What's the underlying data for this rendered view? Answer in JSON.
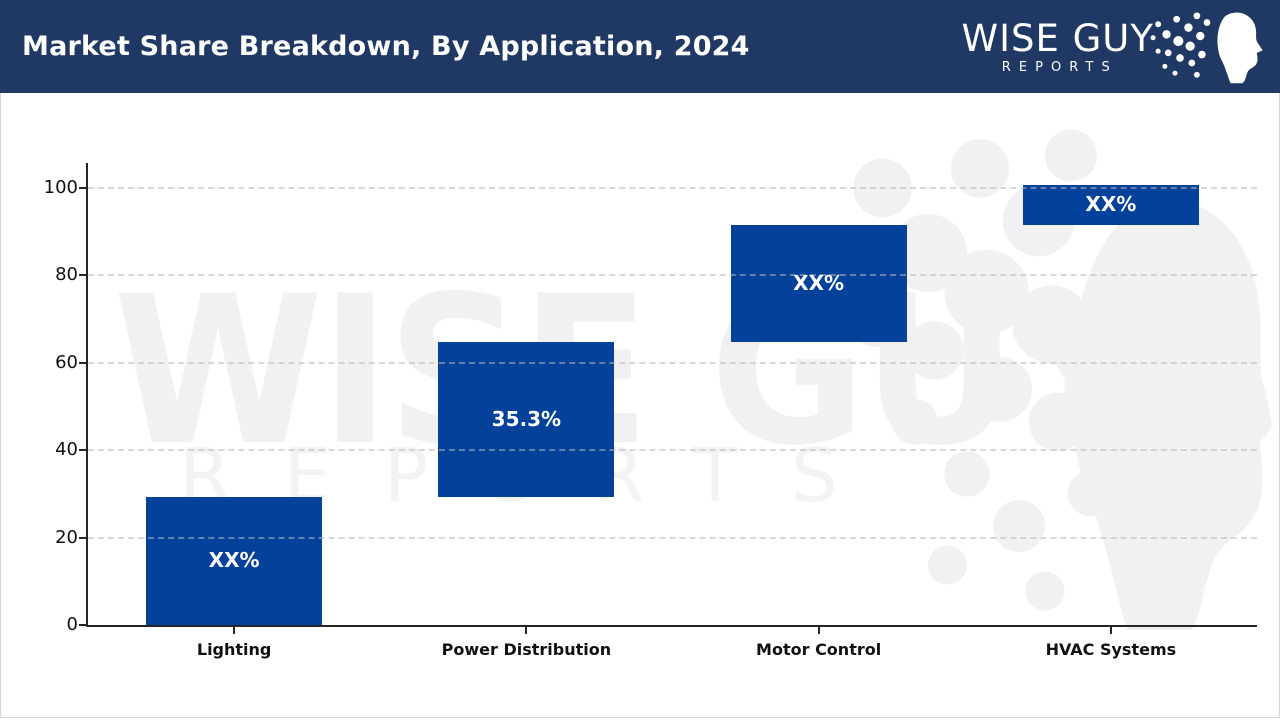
{
  "header": {
    "title": "Market Share Breakdown, By Application, 2024",
    "logo": {
      "line1": "WISE GUY",
      "line2": "REPORTS"
    }
  },
  "watermark": {
    "line1": "WISE GUY",
    "line2": "REPORTS"
  },
  "chart_data": {
    "type": "bar",
    "subtype": "floating-waterfall",
    "title": "Market Share Breakdown, By Application, 2024",
    "categories": [
      "Lighting",
      "Power Distribution",
      "Motor Control",
      "HVAC Systems"
    ],
    "segments": [
      {
        "category": "Lighting",
        "start": 0,
        "end": 29.3,
        "value_label": "XX%"
      },
      {
        "category": "Power Distribution",
        "start": 29.3,
        "end": 64.6,
        "value_label": "35.3%"
      },
      {
        "category": "Motor Control",
        "start": 64.6,
        "end": 91.5,
        "value_label": "XX%"
      },
      {
        "category": "HVAC Systems",
        "start": 91.5,
        "end": 100.5,
        "value_label": "XX%"
      }
    ],
    "yticks": [
      0,
      20,
      40,
      60,
      80,
      100
    ],
    "ylim": [
      0,
      105.6
    ],
    "xlabel": "",
    "ylabel": "",
    "grid": "horizontal-dashed",
    "legend": "none",
    "bar_color": "#04419b",
    "bar_label_color": "#ffffff",
    "axis_color": "#262626",
    "header_bg": "#1f3864"
  }
}
